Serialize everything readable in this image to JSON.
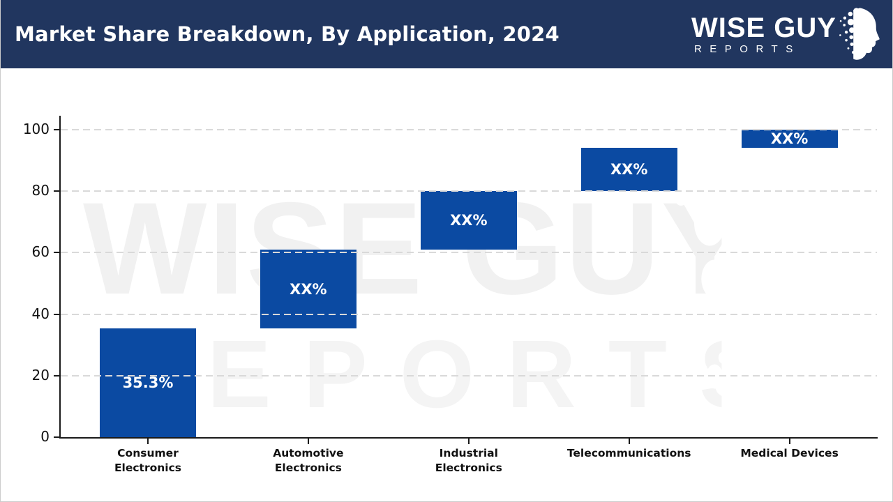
{
  "header": {
    "title": "Market Share Breakdown, By Application, 2024",
    "logo": {
      "name_top": "WISE GUY",
      "name_bottom": "REPORTS"
    }
  },
  "watermark": {
    "text_top": "WISE GUY",
    "text_bottom": "REPORTS"
  },
  "chart_data": {
    "type": "bar",
    "subtype": "stacked-waterfall",
    "title": "Market Share Breakdown, By Application, 2024",
    "xlabel": "",
    "ylabel": "",
    "ylim": [
      0,
      105
    ],
    "yticks": [
      0,
      20,
      40,
      60,
      80,
      100
    ],
    "grid": {
      "horizontal": true,
      "style": "dashed",
      "color": "#d9d9d9"
    },
    "bar_color": "#0b4aa2",
    "value_label_color": "#ffffff",
    "categories": [
      "Consumer Electronics",
      "Automotive Electronics",
      "Industrial Electronics",
      "Telecommunications",
      "Medical Devices"
    ],
    "segments": [
      {
        "category": "Consumer Electronics",
        "category_lines": "Consumer\nElectronics",
        "start": 0,
        "end": 35.3,
        "label": "35.3%"
      },
      {
        "category": "Automotive Electronics",
        "category_lines": "Automotive\nElectronics",
        "start": 35.3,
        "end": 61,
        "label": "XX%"
      },
      {
        "category": "Industrial Electronics",
        "category_lines": "Industrial\nElectronics",
        "start": 61,
        "end": 80,
        "label": "XX%"
      },
      {
        "category": "Telecommunications",
        "category_lines": "Telecommunications",
        "start": 80,
        "end": 94,
        "label": "XX%"
      },
      {
        "category": "Medical Devices",
        "category_lines": "Medical Devices",
        "start": 94,
        "end": 100,
        "label": "XX%"
      }
    ]
  },
  "colors": {
    "header_bg": "#21365f",
    "bar": "#0b4aa2",
    "axis": "#1a1a1a",
    "grid": "#d9d9d9",
    "watermark": "#f1f1f1",
    "text": "#111111"
  }
}
